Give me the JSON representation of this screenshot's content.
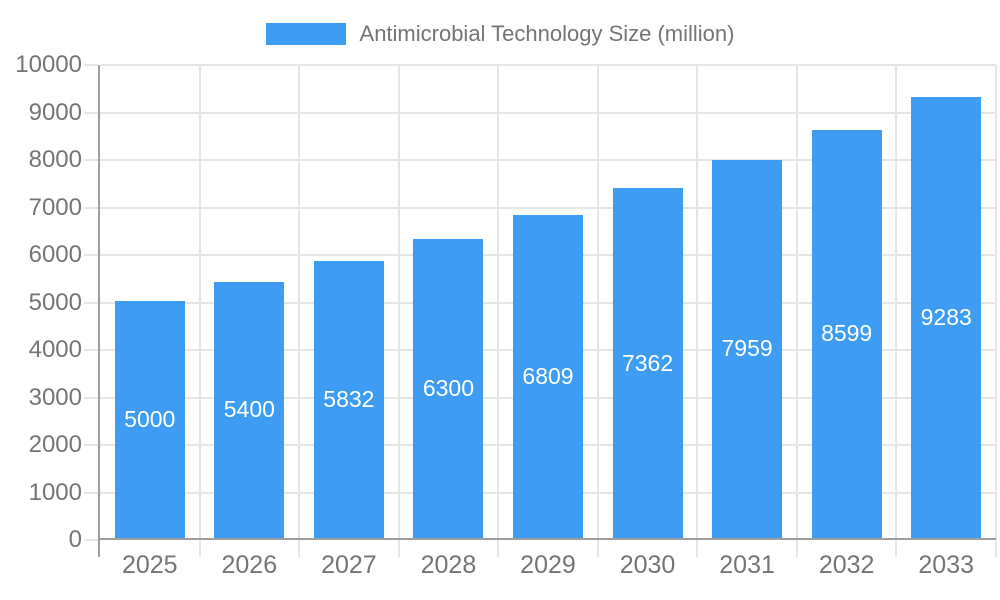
{
  "chart_data": {
    "type": "bar",
    "title": "Antimicrobial Technology Size (million)",
    "categories": [
      "2025",
      "2026",
      "2027",
      "2028",
      "2029",
      "2030",
      "2031",
      "2032",
      "2033"
    ],
    "values": [
      5000,
      5400,
      5832,
      6300,
      6809,
      7362,
      7959,
      8599,
      9283
    ],
    "xlabel": "",
    "ylabel": "",
    "ylim": [
      0,
      10000
    ],
    "ytick_step": 1000,
    "grid": true,
    "legend_position": "top",
    "value_labels": "centered-inside-bars"
  },
  "colors": {
    "bar": "#3E9DF3",
    "grid": "#E6E6E6",
    "axis": "#9E9E9E",
    "text": "#757575",
    "value_label": "#FFFFFF",
    "background": "#FFFFFF"
  }
}
